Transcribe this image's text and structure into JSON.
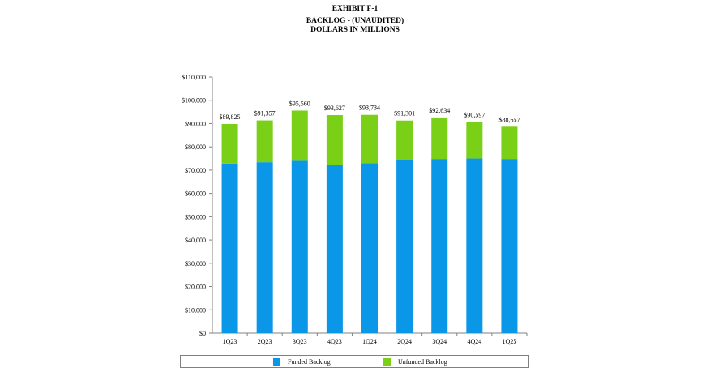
{
  "header": {
    "exhibit": "EXHIBIT F-1",
    "title": "BACKLOG - (UNAUDITED)",
    "subtitle": "DOLLARS IN MILLIONS"
  },
  "colors": {
    "funded": "#0A97E8",
    "unfunded": "#7ACF17",
    "axis": "#808080"
  },
  "chart_data": {
    "type": "bar",
    "stacked": true,
    "categories": [
      "1Q23",
      "2Q23",
      "3Q23",
      "4Q23",
      "1Q24",
      "2Q24",
      "3Q24",
      "4Q24",
      "1Q25"
    ],
    "series": [
      {
        "name": "Funded Backlog",
        "values": [
          72800,
          73400,
          74000,
          72300,
          73000,
          74300,
          74800,
          75000,
          74800
        ]
      },
      {
        "name": "Unfunded Backlog",
        "values": [
          17025,
          17957,
          21560,
          21327,
          20734,
          17001,
          17834,
          15597,
          13857
        ]
      }
    ],
    "totals": [
      "$89,825",
      "$91,357",
      "$95,560",
      "$93,627",
      "$93,734",
      "$91,301",
      "$92,634",
      "$90,597",
      "$88,657"
    ],
    "total_values": [
      89825,
      91357,
      95560,
      93627,
      93734,
      91301,
      92634,
      90597,
      88657
    ],
    "ylim": [
      0,
      110000
    ],
    "yticks": [
      0,
      10000,
      20000,
      30000,
      40000,
      50000,
      60000,
      70000,
      80000,
      90000,
      100000,
      110000
    ],
    "ytick_labels": [
      "$0",
      "$10,000",
      "$20,000",
      "$30,000",
      "$40,000",
      "$50,000",
      "$60,000",
      "$70,000",
      "$80,000",
      "$90,000",
      "$100,000",
      "$110,000"
    ],
    "grid": false,
    "legend_position": "bottom"
  }
}
